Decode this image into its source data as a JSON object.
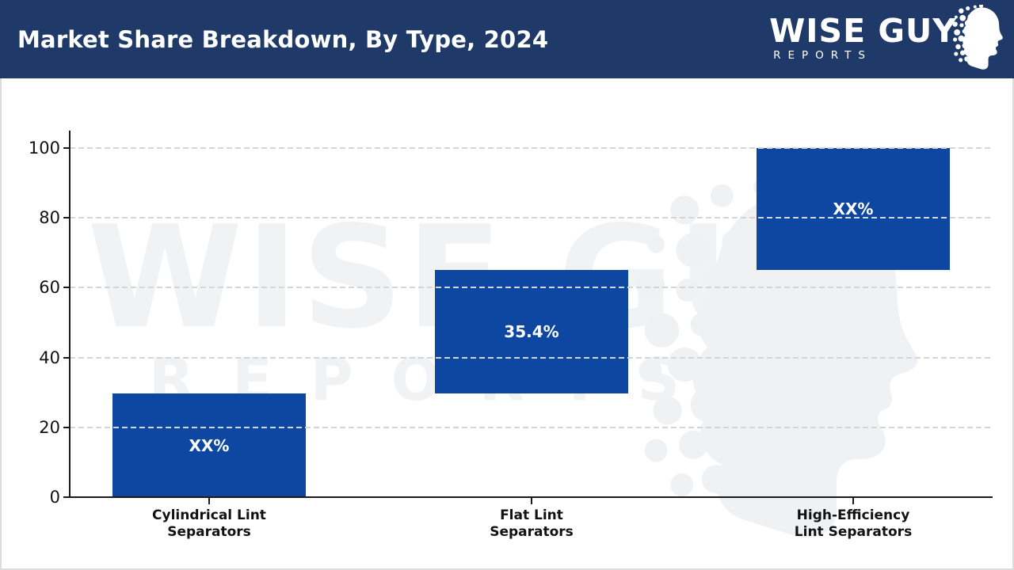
{
  "header": {
    "title": "Market Share Breakdown, By Type, 2024",
    "logo": {
      "name": "WISE GUY",
      "subname": "REPORTS",
      "face_icon": "dotted-face-profile"
    }
  },
  "watermark": {
    "big_text": "WISE GUY",
    "small_text": "REPORTS"
  },
  "chart_data": {
    "type": "bar",
    "subtype": "waterfall",
    "title": "Market Share Breakdown, By Type, 2024",
    "categories": [
      [
        "Cylindrical Lint",
        "Separators"
      ],
      [
        "Flat Lint",
        "Separators"
      ],
      [
        "High-Efficiency",
        "Lint Separators"
      ]
    ],
    "series": [
      {
        "name": "Cylindrical Lint Separators",
        "start": 0,
        "end": 29.6,
        "value_label": "XX%"
      },
      {
        "name": "Flat Lint Separators",
        "start": 29.6,
        "end": 65.0,
        "value_label": "35.4%"
      },
      {
        "name": "High-Efficiency Lint Separators",
        "start": 65.0,
        "end": 100.0,
        "value_label": "XX%"
      }
    ],
    "yticks": [
      0,
      20,
      40,
      60,
      80,
      100
    ],
    "ylim": [
      0,
      105
    ],
    "xlabel": "",
    "ylabel": "",
    "grid": true,
    "gridline_style": "dashed",
    "legend": false,
    "colors": {
      "bar": "#0D47A1",
      "bar_label": "#FFFFFF",
      "gridline": "#D5D5D5",
      "axis": "#1A1A1A",
      "header_bg": "#1F3A68",
      "watermark": "#F1F2F4"
    }
  }
}
